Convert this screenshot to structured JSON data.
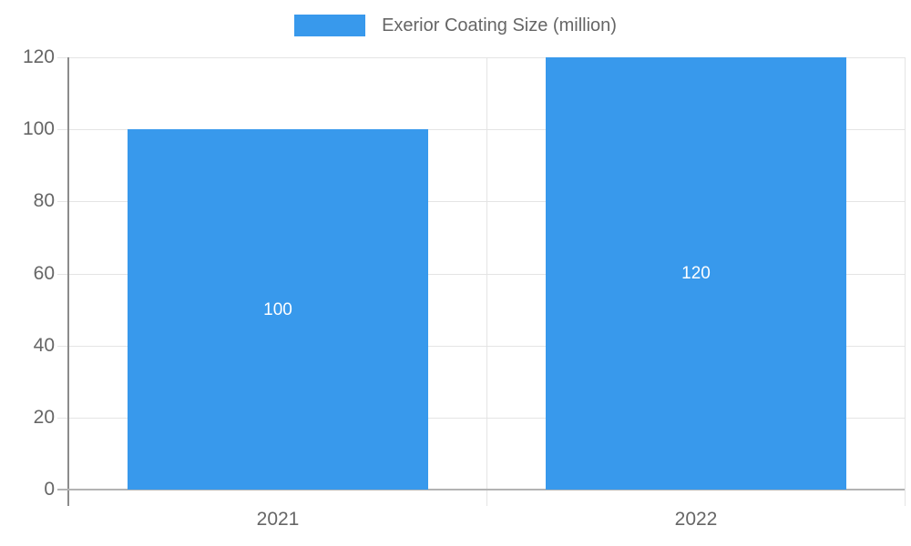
{
  "chart_data": {
    "type": "bar",
    "title": "",
    "legend": "Exerior Coating Size (million)",
    "legend_position": "top",
    "categories": [
      "2021",
      "2022"
    ],
    "series": [
      {
        "name": "Exerior Coating Size (million)",
        "values": [
          100,
          120
        ]
      }
    ],
    "value_labels": [
      "100",
      "120"
    ],
    "xlabel": "",
    "ylabel": "",
    "ylim": [
      0,
      120
    ],
    "yticks": [
      0,
      20,
      40,
      60,
      80,
      100,
      120
    ],
    "grid": true,
    "colors": {
      "bar": "#3899ec",
      "value_label": "#ffffff",
      "axis_line": "#b3b3b3",
      "y_axis_line": "#8c8c8c",
      "gridline": "#e4e4e4",
      "tick_label": "#666666",
      "legend_text": "#666666",
      "background": "#ffffff"
    }
  }
}
